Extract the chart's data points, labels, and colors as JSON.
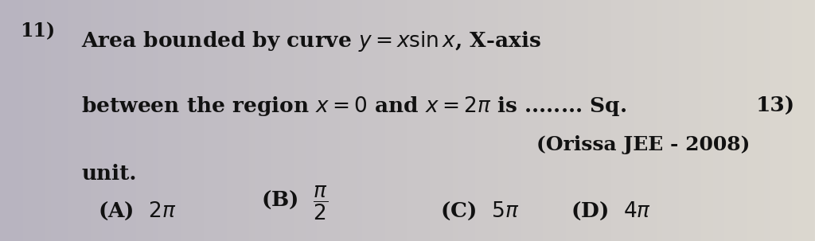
{
  "bg_color_left": "#b8b4c0",
  "bg_color_right": "#d8d4cc",
  "bg_color_main": "#d0ccc4",
  "text_color": "#111111",
  "q_num": "11)",
  "line1_plain": "Area bounded by curve ",
  "line1_math": "$y = x \\sin x$",
  "line1_end": ", X-axis",
  "line2_plain": "between the region ",
  "line2_math1": "$x = 0$",
  "line2_mid": " and ",
  "line2_math2": "$x = 2\\pi$",
  "line2_end": " is ........ Sq.",
  "line3": "unit.",
  "source": "(Orissa JEE - 2008)",
  "right_number": "13)",
  "opt_A_pre": "(A) ",
  "opt_A_math": "$2\\pi$",
  "opt_B_pre": "(B) ",
  "opt_B_math": "$\\dfrac{\\pi}{2}$",
  "opt_C_pre": "(C) ",
  "opt_C_math": "$5\\pi$",
  "opt_D_pre": "(D) ",
  "opt_D_math": "$4\\pi$",
  "main_fontsize": 19,
  "opt_fontsize": 19
}
